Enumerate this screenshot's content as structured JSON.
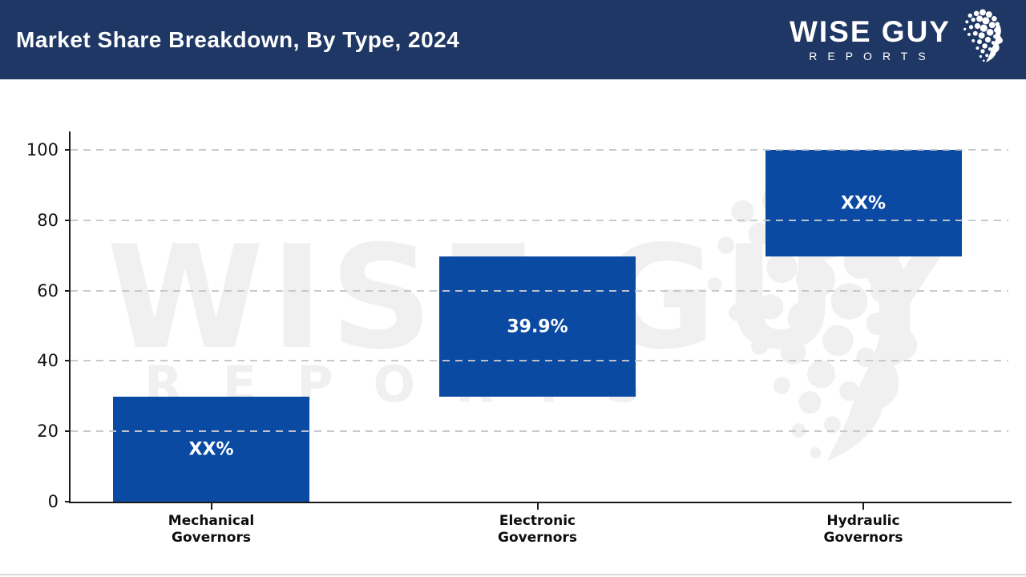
{
  "header": {
    "title": "Market Share Breakdown, By Type, 2024",
    "logo": {
      "brand_top": "WISE GUY",
      "brand_bottom": "REPORTS"
    }
  },
  "watermark": {
    "line1": "WISE GUY",
    "line2": "REPORTS"
  },
  "colors": {
    "header_bg": "#1F3764",
    "bar": "#0B4AA2",
    "grid": "#C5C7CC",
    "axis": "#1A1A1A",
    "bar_label_text": "#FFFFFF",
    "watermark": "#F0F0F1"
  },
  "chart_data": {
    "type": "bar",
    "variant": "stacked-waterfall",
    "title": "Market Share Breakdown, By Type, 2024",
    "xlabel": "",
    "ylabel": "",
    "categories": [
      "Mechanical\nGovernors",
      "Electronic\nGovernors",
      "Hydraulic\nGovernors"
    ],
    "segments": [
      {
        "category": "Mechanical Governors",
        "start": 0,
        "end": 29.8,
        "value_label": "XX%"
      },
      {
        "category": "Electronic Governors",
        "start": 29.8,
        "end": 69.7,
        "value_label": "39.9%"
      },
      {
        "category": "Hydraulic Governors",
        "start": 69.7,
        "end": 100,
        "value_label": "XX%"
      }
    ],
    "yticks": [
      0,
      20,
      40,
      60,
      80,
      100
    ],
    "ylim": [
      0,
      105.3
    ],
    "grid": "horizontal-dashed",
    "legend": "none"
  }
}
